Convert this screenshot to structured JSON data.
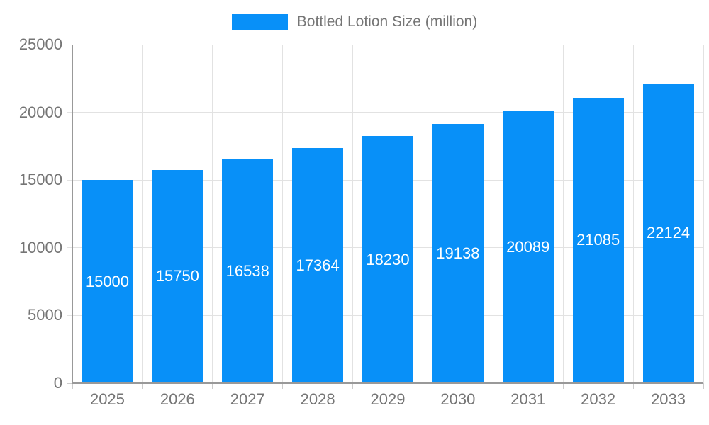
{
  "colors": {
    "bar": "#0890F8",
    "axis": "#999999",
    "grid": "#e2e2e2",
    "tick": "#cccccc",
    "axis_text": "#757575",
    "value_label_text": "#ffffff",
    "background": "#ffffff"
  },
  "chart_data": {
    "type": "bar",
    "title": "",
    "legend": "Bottled Lotion Size (million)",
    "legend_position": "top-center",
    "categories": [
      "2025",
      "2026",
      "2027",
      "2028",
      "2029",
      "2030",
      "2031",
      "2032",
      "2033"
    ],
    "values": [
      15000,
      15750,
      16538,
      17364,
      18230,
      19138,
      20089,
      21085,
      22124
    ],
    "value_labels": [
      "15000",
      "15750",
      "16538",
      "17364",
      "18230",
      "19138",
      "20089",
      "21085",
      "22124"
    ],
    "value_label_position": "inside-center",
    "xlabel": "",
    "ylabel": "",
    "ylim": [
      0,
      25000
    ],
    "ytick_step": 5000,
    "ytick_labels": [
      "0",
      "5000",
      "10000",
      "15000",
      "20000",
      "25000"
    ],
    "grid": true
  }
}
